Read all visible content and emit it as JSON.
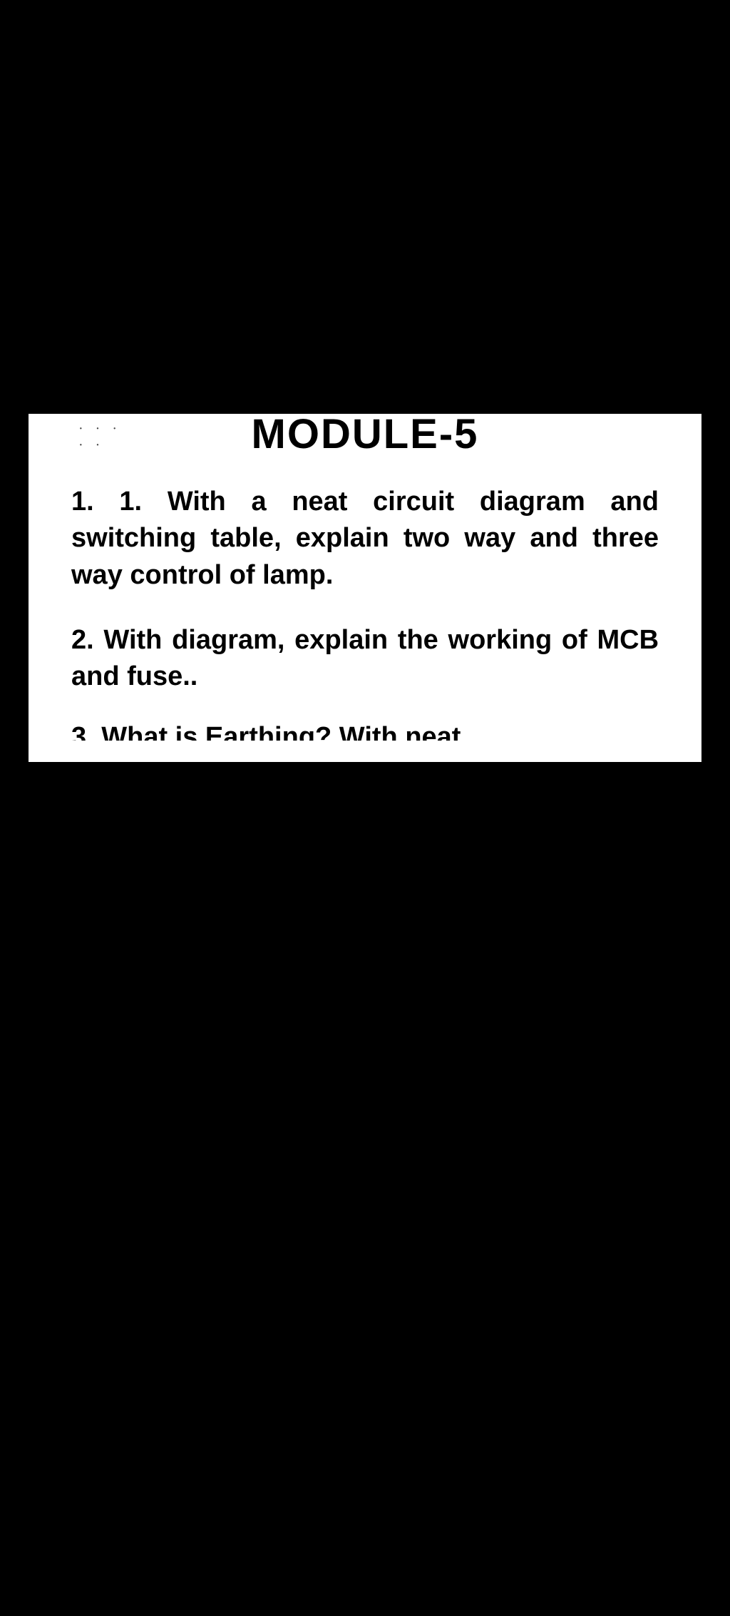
{
  "background_color": "#000000",
  "card": {
    "background_color": "#ffffff",
    "text_color": "#000000"
  },
  "module_title": "MODULE-5",
  "questions": [
    {
      "number": "1. 1.",
      "text": "With a neat circuit diagram and switching table, explain two way and three way control of lamp."
    },
    {
      "number": "2.",
      "text": "With diagram, explain the working of MCB and fuse.."
    }
  ],
  "cutoff_text": "3.  What  is  Earthing?  With  neat"
}
